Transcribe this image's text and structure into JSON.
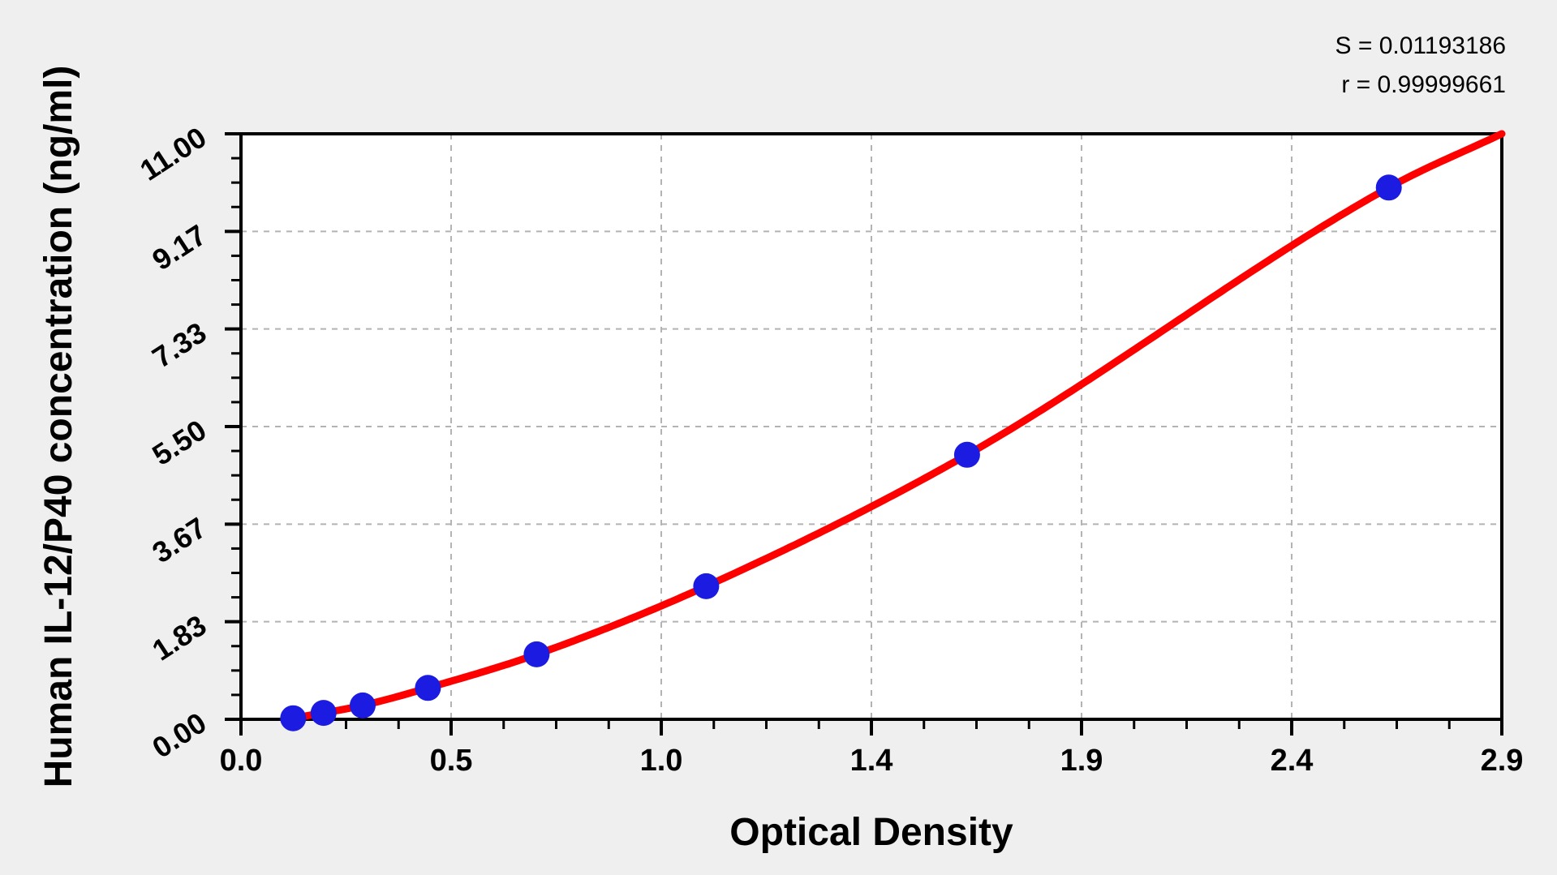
{
  "stats": {
    "s": "S = 0.01193186",
    "r": "r = 0.99999661"
  },
  "chart_data": {
    "type": "scatter",
    "title": "",
    "xlabel": "Optical Density",
    "ylabel": "Human IL-12/P40 concentration (ng/ml)",
    "xlim": [
      0,
      2.9
    ],
    "ylim": [
      0,
      11
    ],
    "x_tick_values": [
      0,
      0.4833,
      0.9667,
      1.45,
      1.9333,
      2.4167,
      2.9
    ],
    "x_tick_labels": [
      "0.0",
      "0.5",
      "1.0",
      "1.4",
      "1.9",
      "2.4",
      "2.9"
    ],
    "y_tick_values": [
      0,
      1.8333,
      3.6667,
      5.5,
      7.3333,
      9.1667,
      11
    ],
    "y_tick_labels": [
      "0.00",
      "1.83",
      "3.67",
      "5.50",
      "7.33",
      "9.17",
      "11.00"
    ],
    "x_minor_ticks_between_majors": 3,
    "y_minor_ticks_between_majors": 3,
    "grid": "dashed lines at interior major ticks, both axes",
    "legend_position": "none",
    "annotations": [
      "S = 0.01193186",
      "r = 0.99999661"
    ],
    "series": [
      {
        "name": "standard-points",
        "type": "scatter",
        "marker": "circle",
        "color": "#1b1be1",
        "points": [
          [
            0.12,
            0.02
          ],
          [
            0.19,
            0.12
          ],
          [
            0.28,
            0.26
          ],
          [
            0.43,
            0.59
          ],
          [
            0.68,
            1.22
          ],
          [
            1.07,
            2.5
          ],
          [
            1.67,
            4.97
          ],
          [
            2.64,
            9.99
          ]
        ]
      },
      {
        "name": "fitted-curve",
        "type": "line",
        "color": "#ff0000",
        "points": [
          [
            0.1,
            -0.02
          ],
          [
            0.12,
            0.02
          ],
          [
            0.19,
            0.12
          ],
          [
            0.28,
            0.26
          ],
          [
            0.43,
            0.59
          ],
          [
            0.68,
            1.22
          ],
          [
            1.07,
            2.5
          ],
          [
            1.67,
            4.97
          ],
          [
            2.64,
            9.99
          ],
          [
            2.9,
            11.0
          ]
        ]
      }
    ],
    "colors": {
      "background": "#efefef",
      "plot_background": "#ffffff",
      "axis": "#000000",
      "grid": "#b3b3b3",
      "curve": "#ff0000",
      "points": "#1b1be1",
      "text": "#000000"
    }
  }
}
